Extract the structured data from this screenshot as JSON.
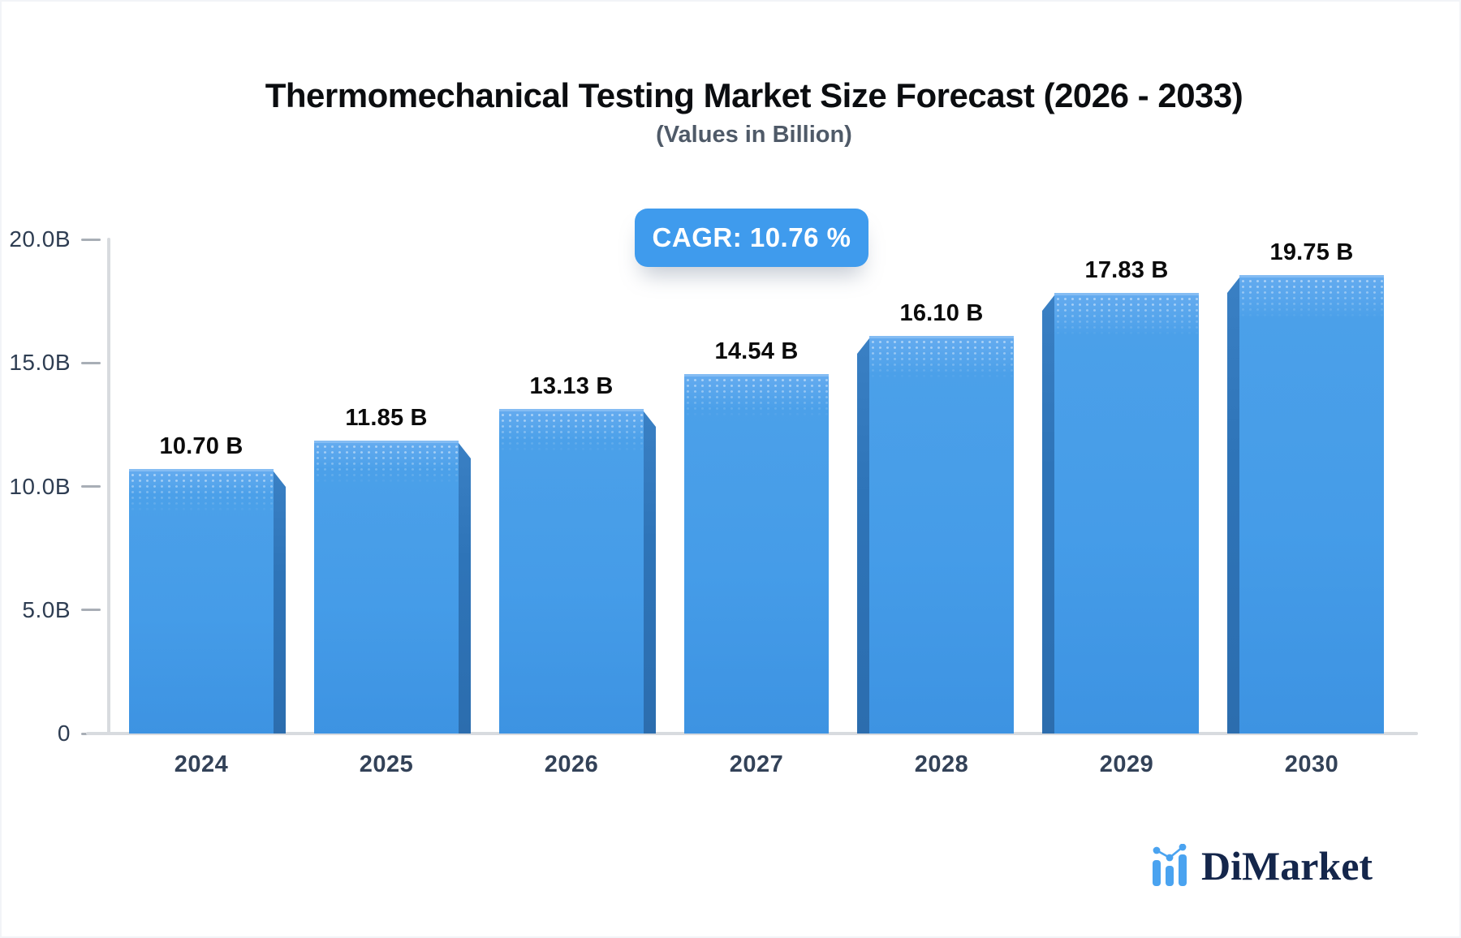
{
  "header": {
    "title": "Thermomechanical Testing Market Size Forecast (2026 - 2033)",
    "subtitle": "(Values in Billion)"
  },
  "badge": {
    "label": "CAGR: 10.76 %"
  },
  "chart_data": {
    "type": "bar",
    "title": "Thermomechanical Testing Market Size Forecast (2026 - 2033)",
    "subtitle": "(Values in Billion)",
    "annotation": "CAGR: 10.76 %",
    "categories": [
      "2024",
      "2025",
      "2026",
      "2027",
      "2028",
      "2029",
      "2030"
    ],
    "values": [
      10.7,
      11.85,
      13.13,
      14.54,
      16.1,
      17.83,
      19.75
    ],
    "value_labels": [
      "10.70 B",
      "11.85 B",
      "13.13 B",
      "14.54 B",
      "16.10 B",
      "17.83 B",
      "19.75 B"
    ],
    "xlabel": "",
    "ylabel": "",
    "ylim": [
      0,
      20
    ],
    "yticks": [
      {
        "label": "20.0B",
        "value": 20
      },
      {
        "label": "15.0B",
        "value": 15
      },
      {
        "label": "10.0B",
        "value": 10
      },
      {
        "label": "5.0B",
        "value": 5
      },
      {
        "label": "0",
        "value": 0
      }
    ],
    "grid": false,
    "legend": "none",
    "colors": {
      "bar_face": "#459ce8",
      "bar_face_light": "#64abef",
      "bar_side": "#2e74b8",
      "badge": "#3f9bed",
      "axis_text": "#2e3d52",
      "value_text": "#0b0b0b"
    }
  },
  "branding": {
    "name": "DiMarket",
    "icon": "mini-bar-chart-icon",
    "text_color": "#14264b",
    "icon_color": "#4aa3f0"
  }
}
